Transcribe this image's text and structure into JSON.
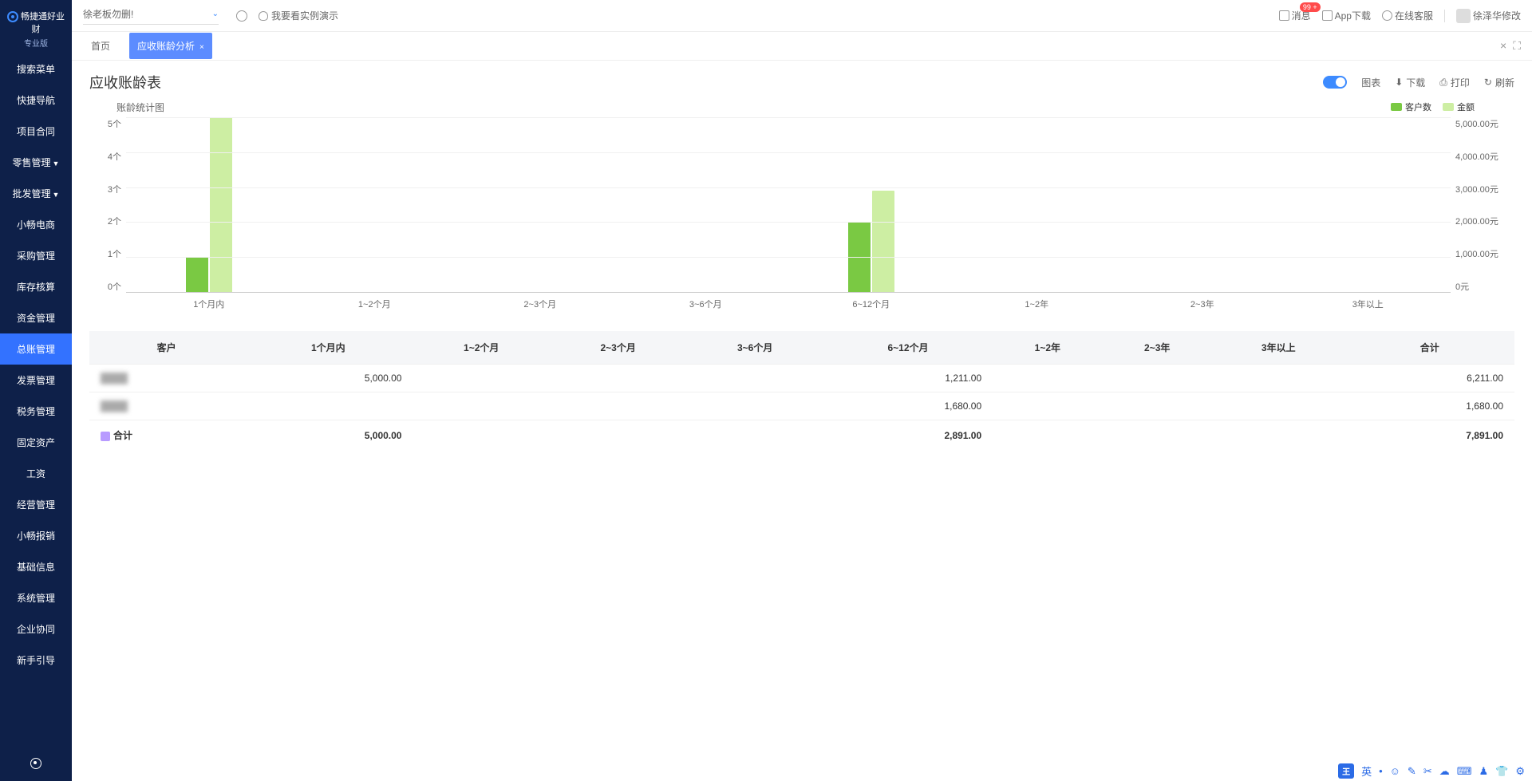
{
  "brand": {
    "name": "畅捷通好业财",
    "edition": "专业版"
  },
  "workspace": {
    "name": "徐老板勿删!",
    "demo_link": "我要看实例演示"
  },
  "topbar": {
    "messages": "消息",
    "badge": "99 +",
    "download": "App下载",
    "support": "在线客服",
    "user": "徐泽华修改"
  },
  "nav": {
    "items": [
      {
        "label": "搜索菜单",
        "caret": false
      },
      {
        "label": "快捷导航",
        "caret": false
      },
      {
        "label": "项目合同",
        "caret": false
      },
      {
        "label": "零售管理",
        "caret": true
      },
      {
        "label": "批发管理",
        "caret": true
      },
      {
        "label": "小畅电商",
        "caret": false
      },
      {
        "label": "采购管理",
        "caret": false
      },
      {
        "label": "库存核算",
        "caret": false
      },
      {
        "label": "资金管理",
        "caret": false
      },
      {
        "label": "总账管理",
        "caret": false,
        "active": true
      },
      {
        "label": "发票管理",
        "caret": false
      },
      {
        "label": "税务管理",
        "caret": false
      },
      {
        "label": "固定资产",
        "caret": false
      },
      {
        "label": "工资",
        "caret": false
      },
      {
        "label": "经营管理",
        "caret": false
      },
      {
        "label": "小畅报销",
        "caret": false
      },
      {
        "label": "基础信息",
        "caret": false
      },
      {
        "label": "系统管理",
        "caret": false
      },
      {
        "label": "企业协同",
        "caret": false
      },
      {
        "label": "新手引导",
        "caret": false
      }
    ]
  },
  "tabs": {
    "home": "首页",
    "active": "应收账龄分析"
  },
  "page": {
    "title": "应收账龄表",
    "actions": {
      "chart": "图表",
      "download": "下载",
      "print": "打印",
      "refresh": "刷新"
    }
  },
  "chart": {
    "title": "账龄统计图",
    "legend": {
      "customers": "客户数",
      "amount": "金额"
    },
    "colors": {
      "customers": "#7ac943",
      "amount": "#cdeea3",
      "grid": "#f0f0f0",
      "axis": "#cccccc"
    },
    "categories": [
      "1个月内",
      "1~2个月",
      "2~3个月",
      "3~6个月",
      "6~12个月",
      "1~2年",
      "2~3年",
      "3年以上"
    ],
    "y_left": {
      "ticks": [
        "5个",
        "4个",
        "3个",
        "2个",
        "1个",
        "0个"
      ],
      "max": 5
    },
    "y_right": {
      "ticks": [
        "5,000.00元",
        "4,000.00元",
        "3,000.00元",
        "2,000.00元",
        "1,000.00元",
        "0元"
      ],
      "max": 5000
    },
    "series": {
      "customers": [
        1,
        0,
        0,
        0,
        2,
        0,
        0,
        0
      ],
      "amount": [
        5000,
        0,
        0,
        0,
        2891,
        0,
        0,
        0
      ]
    }
  },
  "table": {
    "columns": [
      "客户",
      "1个月内",
      "1~2个月",
      "2~3个月",
      "3~6个月",
      "6~12个月",
      "1~2年",
      "2~3年",
      "3年以上",
      "合计"
    ],
    "rows": [
      {
        "customer": "████",
        "m1": "5,000.00",
        "m2": "",
        "m3": "",
        "m6": "",
        "m12": "1,211.00",
        "y1": "",
        "y2": "",
        "y3": "",
        "total": "6,211.00"
      },
      {
        "customer": "████",
        "m1": "",
        "m2": "",
        "m3": "",
        "m6": "",
        "m12": "1,680.00",
        "y1": "",
        "y2": "",
        "y3": "",
        "total": "1,680.00"
      }
    ],
    "total_label": "合计",
    "totals": {
      "m1": "5,000.00",
      "m2": "",
      "m3": "",
      "m6": "",
      "m12": "2,891.00",
      "y1": "",
      "y2": "",
      "y3": "",
      "total": "7,891.00"
    }
  },
  "ime": {
    "han": "王",
    "lang": "英",
    "dot": "•"
  }
}
